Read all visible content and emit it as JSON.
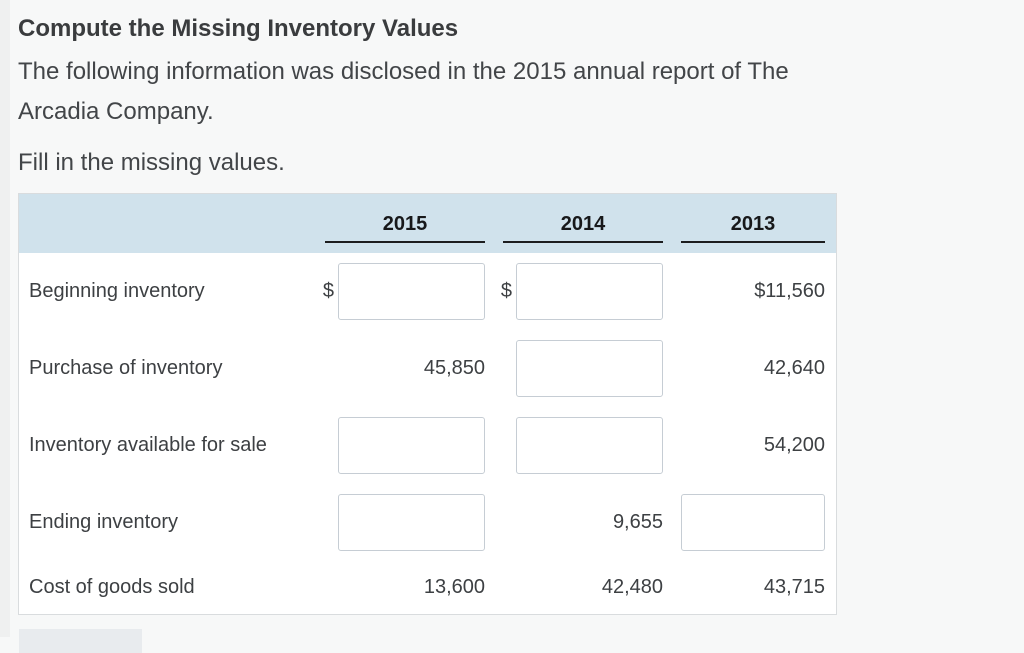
{
  "page": {
    "title": "Compute the Missing Inventory Values",
    "intro_line1": "The following information was disclosed in the 2015 annual report of The",
    "intro_line2": "Arcadia Company.",
    "instruction": "Fill in the missing values."
  },
  "table": {
    "columns": [
      "2015",
      "2014",
      "2013"
    ],
    "rows": [
      {
        "label": "Beginning inventory",
        "cells": [
          {
            "type": "input",
            "prefix": "$",
            "value": ""
          },
          {
            "type": "input",
            "prefix": "$",
            "value": ""
          },
          {
            "type": "text",
            "text": "$11,560"
          }
        ]
      },
      {
        "label": "Purchase of inventory",
        "cells": [
          {
            "type": "text",
            "text": "45,850"
          },
          {
            "type": "input",
            "value": ""
          },
          {
            "type": "text",
            "text": "42,640"
          }
        ]
      },
      {
        "label": "Inventory available for sale",
        "cells": [
          {
            "type": "input",
            "value": ""
          },
          {
            "type": "input",
            "value": ""
          },
          {
            "type": "text",
            "text": "54,200"
          }
        ]
      },
      {
        "label": "Ending inventory",
        "cells": [
          {
            "type": "input",
            "value": ""
          },
          {
            "type": "text",
            "text": "9,655"
          },
          {
            "type": "input",
            "value": ""
          }
        ]
      },
      {
        "label": "Cost of goods sold",
        "cells": [
          {
            "type": "text",
            "text": "13,600"
          },
          {
            "type": "text",
            "text": "42,480"
          },
          {
            "type": "text",
            "text": "43,715"
          }
        ]
      }
    ]
  },
  "colors": {
    "page_background": "#f7f8f8",
    "header_background": "#d0e2ec",
    "table_background": "#ffffff",
    "table_border": "#d9dcde",
    "input_border": "#c6cdd4",
    "year_underline": "#1c1d1f",
    "text_primary": "#3d4043",
    "partial_button": "#e8ebee"
  }
}
